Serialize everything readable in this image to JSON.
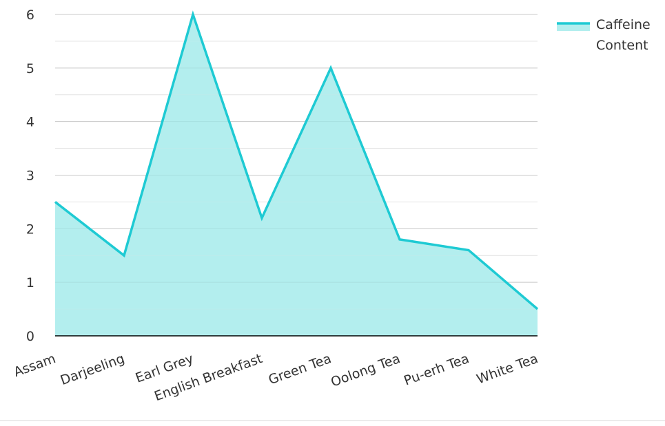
{
  "chart_data": {
    "type": "area",
    "categories": [
      "Assam",
      "Darjeeling",
      "Earl Grey",
      "English Breakfast",
      "Green Tea",
      "Oolong Tea",
      "Pu-erh Tea",
      "White Tea"
    ],
    "series": [
      {
        "name": "Caffeine Content",
        "values": [
          2.5,
          1.5,
          6,
          2.2,
          5,
          1.8,
          1.6,
          0.5
        ]
      }
    ],
    "ylim": [
      0,
      6
    ],
    "yticks": [
      0,
      1,
      2,
      3,
      4,
      5,
      6
    ],
    "grid": true,
    "legend_position": "top-right",
    "legend_lines": [
      "Caffeine",
      "Content"
    ],
    "colors": {
      "line": "#1ecad3",
      "fill": "#b3eeee",
      "grid": "#cccccc",
      "axis": "#000000"
    }
  }
}
